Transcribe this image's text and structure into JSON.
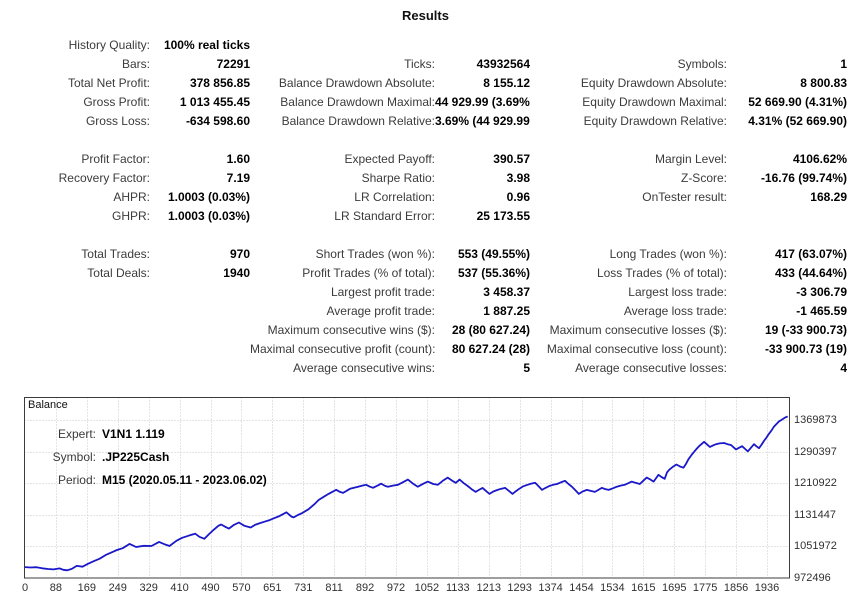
{
  "title": "Results",
  "stats": {
    "rows": [
      [
        "History Quality:",
        "100% real ticks",
        "",
        "",
        "",
        ""
      ],
      [
        "Bars:",
        "72291",
        "Ticks:",
        "43932564",
        "Symbols:",
        "1"
      ],
      [
        "Total Net Profit:",
        "378 856.85",
        "Balance Drawdown Absolute:",
        "8 155.12",
        "Equity Drawdown Absolute:",
        "8 800.83"
      ],
      [
        "Gross Profit:",
        "1 013 455.45",
        "Balance Drawdown Maximal:",
        "44 929.99 (3.69%)",
        "Equity Drawdown Maximal:",
        "52 669.90 (4.31%)"
      ],
      [
        "Gross Loss:",
        "-634 598.60",
        "Balance Drawdown Relative:",
        "3.69% (44 929.99)",
        "Equity Drawdown Relative:",
        "4.31% (52 669.90)"
      ],
      [
        "",
        "",
        "",
        "",
        "",
        ""
      ],
      [
        "Profit Factor:",
        "1.60",
        "Expected Payoff:",
        "390.57",
        "Margin Level:",
        "4106.62%"
      ],
      [
        "Recovery Factor:",
        "7.19",
        "Sharpe Ratio:",
        "3.98",
        "Z-Score:",
        "-16.76 (99.74%)"
      ],
      [
        "AHPR:",
        "1.0003 (0.03%)",
        "LR Correlation:",
        "0.96",
        "OnTester result:",
        "168.29"
      ],
      [
        "GHPR:",
        "1.0003 (0.03%)",
        "LR Standard Error:",
        "25 173.55",
        "",
        ""
      ],
      [
        "",
        "",
        "",
        "",
        "",
        ""
      ],
      [
        "Total Trades:",
        "970",
        "Short Trades (won %):",
        "553 (49.55%)",
        "Long Trades (won %):",
        "417 (63.07%)"
      ],
      [
        "Total Deals:",
        "1940",
        "Profit Trades (% of total):",
        "537 (55.36%)",
        "Loss Trades (% of total):",
        "433 (44.64%)"
      ],
      [
        "",
        "",
        "Largest profit trade:",
        "3 458.37",
        "Largest loss trade:",
        "-3 306.79"
      ],
      [
        "",
        "",
        "Average profit trade:",
        "1 887.25",
        "Average loss trade:",
        "-1 465.59"
      ],
      [
        "",
        "",
        "Maximum consecutive wins ($):",
        "28 (80 627.24)",
        "Maximum consecutive losses ($):",
        "19 (-33 900.73)"
      ],
      [
        "",
        "",
        "Maximal consecutive profit (count):",
        "80 627.24 (28)",
        "Maximal consecutive loss (count):",
        "-33 900.73 (19)"
      ],
      [
        "",
        "",
        "Average consecutive wins:",
        "5",
        "Average consecutive losses:",
        "4"
      ]
    ]
  },
  "chart": {
    "corner_label": "Balance",
    "info": [
      {
        "label": "Expert:",
        "value": "V1N1 1.119"
      },
      {
        "label": "Symbol:",
        "value": ".JP225Cash"
      },
      {
        "label": "Period:",
        "value": "M15 (2020.05.11 - 2023.06.02)"
      }
    ]
  },
  "chart_data": {
    "type": "line",
    "title": "Balance",
    "xlabel": "",
    "ylabel": "",
    "legend_position": "none",
    "grid": "dotted",
    "line_color": "#1a18c8",
    "x_ticks": [
      0,
      88,
      169,
      249,
      329,
      410,
      490,
      570,
      651,
      731,
      811,
      892,
      972,
      1052,
      1133,
      1213,
      1293,
      1374,
      1454,
      1534,
      1615,
      1695,
      1775,
      1856,
      1936
    ],
    "y_ticks": [
      1369873,
      1290397,
      1210922,
      1131447,
      1051972,
      972496
    ],
    "xlim": [
      0,
      1990
    ],
    "ylim": [
      972496,
      1369873
    ],
    "series": [
      {
        "name": "Balance",
        "points": [
          [
            0,
            1000000
          ],
          [
            15,
            998800
          ],
          [
            30,
            999600
          ],
          [
            45,
            996800
          ],
          [
            60,
            995200
          ],
          [
            75,
            994000
          ],
          [
            90,
            996600
          ],
          [
            100,
            993200
          ],
          [
            110,
            991845
          ],
          [
            122,
            995500
          ],
          [
            135,
            1003000
          ],
          [
            150,
            1001000
          ],
          [
            165,
            1008500
          ],
          [
            180,
            1015000
          ],
          [
            195,
            1021000
          ],
          [
            210,
            1030000
          ],
          [
            225,
            1036500
          ],
          [
            240,
            1043000
          ],
          [
            255,
            1047500
          ],
          [
            273,
            1058300
          ],
          [
            290,
            1050500
          ],
          [
            310,
            1053500
          ],
          [
            330,
            1053000
          ],
          [
            350,
            1063400
          ],
          [
            365,
            1057000
          ],
          [
            377,
            1053000
          ],
          [
            395,
            1066000
          ],
          [
            410,
            1073700
          ],
          [
            430,
            1080000
          ],
          [
            444,
            1084000
          ],
          [
            455,
            1076000
          ],
          [
            468,
            1071000
          ],
          [
            480,
            1083000
          ],
          [
            490,
            1091600
          ],
          [
            505,
            1104000
          ],
          [
            512,
            1107000
          ],
          [
            525,
            1100000
          ],
          [
            532,
            1096800
          ],
          [
            545,
            1106000
          ],
          [
            558,
            1112200
          ],
          [
            572,
            1104000
          ],
          [
            589,
            1099400
          ],
          [
            600,
            1106000
          ],
          [
            610,
            1109600
          ],
          [
            625,
            1114000
          ],
          [
            636,
            1117300
          ],
          [
            650,
            1123000
          ],
          [
            662,
            1127500
          ],
          [
            682,
            1137800
          ],
          [
            695,
            1127000
          ],
          [
            701,
            1125000
          ],
          [
            712,
            1131000
          ],
          [
            722,
            1135200
          ],
          [
            740,
            1145500
          ],
          [
            755,
            1158000
          ],
          [
            766,
            1168600
          ],
          [
            780,
            1177000
          ],
          [
            792,
            1184000
          ],
          [
            812,
            1194200
          ],
          [
            822,
            1189000
          ],
          [
            830,
            1186500
          ],
          [
            848,
            1196800
          ],
          [
            869,
            1201900
          ],
          [
            880,
            1205000
          ],
          [
            890,
            1207000
          ],
          [
            900,
            1202000
          ],
          [
            908,
            1199300
          ],
          [
            920,
            1205000
          ],
          [
            929,
            1209600
          ],
          [
            940,
            1204000
          ],
          [
            947,
            1201900
          ],
          [
            960,
            1205000
          ],
          [
            973,
            1207000
          ],
          [
            985,
            1213000
          ],
          [
            999,
            1219900
          ],
          [
            1012,
            1210000
          ],
          [
            1025,
            1202000
          ],
          [
            1040,
            1210000
          ],
          [
            1051,
            1215000
          ],
          [
            1065,
            1209000
          ],
          [
            1077,
            1207000
          ],
          [
            1090,
            1217000
          ],
          [
            1103,
            1225000
          ],
          [
            1115,
            1217000
          ],
          [
            1124,
            1212000
          ],
          [
            1134,
            1220000
          ],
          [
            1145,
            1211000
          ],
          [
            1155,
            1204000
          ],
          [
            1165,
            1196000
          ],
          [
            1176,
            1189000
          ],
          [
            1186,
            1195000
          ],
          [
            1194,
            1199000
          ],
          [
            1203,
            1191000
          ],
          [
            1212,
            1184000
          ],
          [
            1222,
            1190000
          ],
          [
            1233,
            1194000
          ],
          [
            1243,
            1197000
          ],
          [
            1253,
            1199000
          ],
          [
            1263,
            1191000
          ],
          [
            1272,
            1184000
          ],
          [
            1281,
            1191000
          ],
          [
            1290,
            1197000
          ],
          [
            1300,
            1203000
          ],
          [
            1311,
            1207000
          ],
          [
            1321,
            1210000
          ],
          [
            1331,
            1212000
          ],
          [
            1340,
            1203000
          ],
          [
            1349,
            1194000
          ],
          [
            1358,
            1199000
          ],
          [
            1368,
            1204000
          ],
          [
            1378,
            1207000
          ],
          [
            1388,
            1209000
          ],
          [
            1398,
            1213000
          ],
          [
            1409,
            1217000
          ],
          [
            1418,
            1209000
          ],
          [
            1427,
            1202000
          ],
          [
            1436,
            1193000
          ],
          [
            1445,
            1184000
          ],
          [
            1455,
            1190000
          ],
          [
            1466,
            1194000
          ],
          [
            1476,
            1191500
          ],
          [
            1487,
            1189000
          ],
          [
            1496,
            1194000
          ],
          [
            1505,
            1199000
          ],
          [
            1514,
            1196000
          ],
          [
            1523,
            1194000
          ],
          [
            1534,
            1198000
          ],
          [
            1544,
            1202000
          ],
          [
            1554,
            1205000
          ],
          [
            1565,
            1207000
          ],
          [
            1574,
            1211000
          ],
          [
            1583,
            1215000
          ],
          [
            1593,
            1212000
          ],
          [
            1604,
            1209000
          ],
          [
            1613,
            1217000
          ],
          [
            1622,
            1225000
          ],
          [
            1632,
            1220000
          ],
          [
            1640,
            1215000
          ],
          [
            1647,
            1224000
          ],
          [
            1653,
            1232000
          ],
          [
            1660,
            1227000
          ],
          [
            1669,
            1222000
          ],
          [
            1675,
            1238000
          ],
          [
            1681,
            1245000
          ],
          [
            1690,
            1252000
          ],
          [
            1700,
            1258000
          ],
          [
            1709,
            1253000
          ],
          [
            1718,
            1250000
          ],
          [
            1725,
            1260000
          ],
          [
            1731,
            1271000
          ],
          [
            1740,
            1283000
          ],
          [
            1751,
            1296000
          ],
          [
            1760,
            1305000
          ],
          [
            1772,
            1315000
          ],
          [
            1780,
            1308000
          ],
          [
            1787,
            1302000
          ],
          [
            1795,
            1306000
          ],
          [
            1803,
            1309000
          ],
          [
            1812,
            1311000
          ],
          [
            1824,
            1312000
          ],
          [
            1833,
            1309000
          ],
          [
            1842,
            1307000
          ],
          [
            1849,
            1301000
          ],
          [
            1855,
            1296000
          ],
          [
            1863,
            1300000
          ],
          [
            1871,
            1304000
          ],
          [
            1879,
            1297000
          ],
          [
            1886,
            1291000
          ],
          [
            1894,
            1300000
          ],
          [
            1902,
            1309000
          ],
          [
            1908,
            1304000
          ],
          [
            1915,
            1299000
          ],
          [
            1922,
            1308000
          ],
          [
            1928,
            1317000
          ],
          [
            1935,
            1326000
          ],
          [
            1941,
            1335000
          ],
          [
            1948,
            1344000
          ],
          [
            1954,
            1353000
          ],
          [
            1961,
            1360000
          ],
          [
            1967,
            1366000
          ],
          [
            1975,
            1371000
          ],
          [
            1983,
            1376000
          ],
          [
            1990,
            1378857
          ]
        ]
      }
    ]
  }
}
